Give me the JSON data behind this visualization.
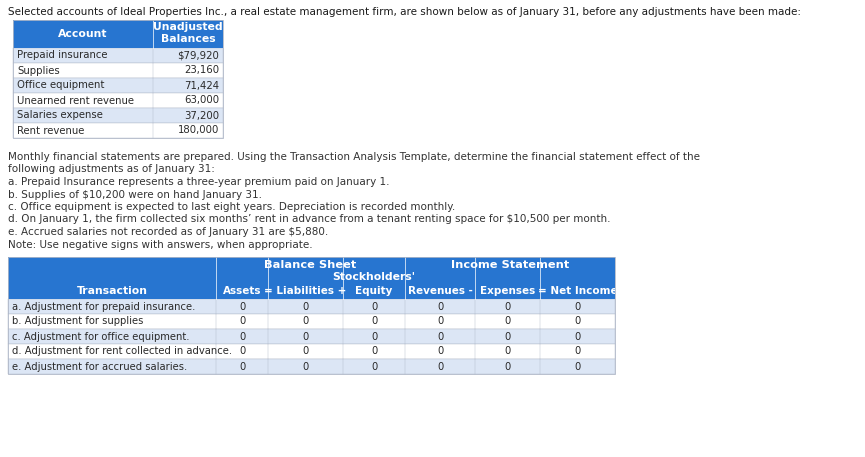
{
  "title_text": "Selected accounts of Ideal Properties Inc., a real estate management firm, are shown below as of January 31, before any adjustments have been made:",
  "top_table_rows": [
    [
      "Prepaid insurance",
      "$79,920"
    ],
    [
      "Supplies",
      "23,160"
    ],
    [
      "Office equipment",
      "71,424"
    ],
    [
      "Unearned rent revenue",
      "63,000"
    ],
    [
      "Salaries expense",
      "37,200"
    ],
    [
      "Rent revenue",
      "180,000"
    ]
  ],
  "middle_text": [
    [
      "Monthly financial statements are prepared. Using the Transaction Analysis Template, determine the financial statement effect of the",
      false
    ],
    [
      "following adjustments as of January 31:",
      false
    ],
    [
      "a. Prepaid Insurance represents a three-year premium paid on January 1.",
      false
    ],
    [
      "b. Supplies of $10,200 were on hand January 31.",
      false
    ],
    [
      "c. Office equipment is expected to last eight years. Depreciation is recorded monthly.",
      false
    ],
    [
      "d. On January 1, the firm collected six months’ rent in advance from a tenant renting space for $10,500 per month.",
      false
    ],
    [
      "e. Accrued salaries not recorded as of January 31 are $5,880.",
      false
    ],
    [
      "Note: Use negative signs with answers, when appropriate.",
      false
    ]
  ],
  "bottom_col_headers_r3": [
    "Transaction",
    "Assets",
    "= Liabilities +",
    "Equity",
    "Revenues -",
    "Expenses",
    "= Net Income"
  ],
  "bottom_table_rows": [
    [
      "a. Adjustment for prepaid insurance.",
      "0",
      "0",
      "0",
      "0",
      "0",
      "0"
    ],
    [
      "b. Adjustment for supplies",
      "0",
      "0",
      "0",
      "0",
      "0",
      "0"
    ],
    [
      "c. Adjustment for office equipment.",
      "0",
      "0",
      "0",
      "0",
      "0",
      "0"
    ],
    [
      "d. Adjustment for rent collected in advance.",
      "0",
      "0",
      "0",
      "0",
      "0",
      "0"
    ],
    [
      "e. Adjustment for accrued salaries.",
      "0",
      "0",
      "0",
      "0",
      "0",
      "0"
    ]
  ],
  "header_bg": "#2775d0",
  "header_fg": "#ffffff",
  "row_bg_light": "#dce6f5",
  "row_bg_white": "#ffffff",
  "border_color": "#b0b8c8",
  "text_color": "#2a2a2a",
  "title_color": "#1a1a1a",
  "middle_text_color": "#333333"
}
